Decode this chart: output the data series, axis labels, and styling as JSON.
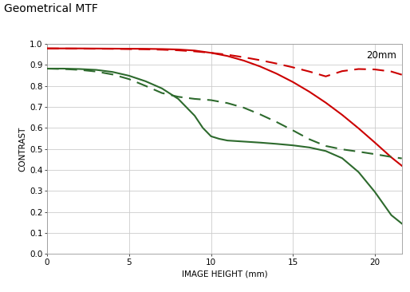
{
  "title": "Geometrical MTF",
  "annotation": "20mm",
  "xlabel": "IMAGE HEIGHT (mm)",
  "ylabel": "CONTRAST",
  "xlim": [
    0,
    21.64
  ],
  "ylim": [
    0,
    1.0
  ],
  "yticks": [
    0,
    0.1,
    0.2,
    0.3,
    0.4,
    0.5,
    0.6,
    0.7,
    0.8,
    0.9,
    1
  ],
  "xticks": [
    0,
    5,
    10,
    15,
    20
  ],
  "red_solid_x": [
    0,
    2,
    4,
    6,
    7,
    8,
    9,
    10,
    11,
    12,
    13,
    14,
    15,
    16,
    17,
    18,
    19,
    20,
    21,
    21.64
  ],
  "red_solid_y": [
    0.978,
    0.978,
    0.977,
    0.976,
    0.975,
    0.973,
    0.968,
    0.957,
    0.942,
    0.92,
    0.892,
    0.858,
    0.818,
    0.772,
    0.72,
    0.662,
    0.598,
    0.53,
    0.46,
    0.42
  ],
  "red_dashed_x": [
    0,
    2,
    4,
    6,
    7,
    8,
    9,
    10,
    11,
    12,
    13,
    14,
    15,
    16,
    17,
    18,
    19,
    20,
    21,
    21.64
  ],
  "red_dashed_y": [
    0.978,
    0.977,
    0.976,
    0.974,
    0.972,
    0.969,
    0.964,
    0.957,
    0.948,
    0.936,
    0.922,
    0.906,
    0.888,
    0.868,
    0.845,
    0.87,
    0.88,
    0.878,
    0.868,
    0.853
  ],
  "green_solid_x": [
    0,
    1,
    2,
    3,
    4,
    5,
    6,
    7,
    8,
    9,
    9.5,
    10,
    10.5,
    11,
    12,
    13,
    14,
    15,
    16,
    17,
    18,
    19,
    20,
    21,
    21.64
  ],
  "green_solid_y": [
    0.882,
    0.882,
    0.88,
    0.876,
    0.866,
    0.848,
    0.822,
    0.788,
    0.738,
    0.658,
    0.6,
    0.56,
    0.548,
    0.54,
    0.535,
    0.53,
    0.524,
    0.517,
    0.507,
    0.49,
    0.456,
    0.39,
    0.295,
    0.185,
    0.145
  ],
  "green_dashed_x": [
    0,
    1,
    2,
    3,
    4,
    5,
    6,
    7,
    8,
    9,
    10,
    11,
    12,
    13,
    14,
    15,
    16,
    17,
    18,
    19,
    20,
    21,
    21.64
  ],
  "green_dashed_y": [
    0.882,
    0.88,
    0.876,
    0.868,
    0.854,
    0.832,
    0.8,
    0.766,
    0.748,
    0.738,
    0.732,
    0.718,
    0.696,
    0.664,
    0.628,
    0.588,
    0.546,
    0.514,
    0.498,
    0.487,
    0.475,
    0.462,
    0.455
  ],
  "red_color": "#cc0000",
  "green_color": "#2d6a2d",
  "bg_color": "#ffffff",
  "grid_color": "#cccccc",
  "title_fontsize": 10,
  "axis_label_fontsize": 7.5,
  "tick_fontsize": 7.5,
  "annotation_fontsize": 8.5,
  "line_width": 1.5
}
